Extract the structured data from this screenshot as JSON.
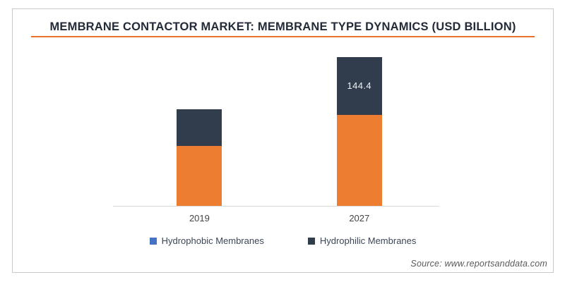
{
  "frame": {
    "border_color": "#c9c9c9",
    "background": "#ffffff"
  },
  "header": {
    "title": "MEMBRANE CONTACTOR MARKET: MEMBRANE TYPE DYNAMICS (USD BILLION)",
    "title_color": "#232a38",
    "underline_color": "#e8712c"
  },
  "chart_data": {
    "type": "bar",
    "stacked": true,
    "title": "MEMBRANE CONTACTOR MARKET: MEMBRANE TYPE DYNAMICS (USD BILLION)",
    "xlabel": "",
    "ylabel": "",
    "unit": "USD Billion",
    "categories": [
      "2019",
      "2027"
    ],
    "series": [
      {
        "name": "Hydrophobic Membranes",
        "legend_color": "#4472c4",
        "bar_color": "#ed7d31",
        "values": [
          150,
          227
        ]
      },
      {
        "name": "Hydrophilic Membranes",
        "legend_color": "#313d4d",
        "bar_color": "#313d4d",
        "values": [
          92,
          144.4
        ]
      }
    ],
    "data_labels": [
      {
        "category": "2027",
        "series": "Hydrophilic Membranes",
        "text": "144.4"
      }
    ],
    "values_estimated_from_pixels": true,
    "value_axis_visible": false,
    "grid": false,
    "legend_position": "bottom",
    "axis": {
      "baseline_color": "#d9d9d9",
      "tick_label_color": "#444444"
    }
  },
  "footer": {
    "source": "Source: www.reportsanddata.com",
    "source_color": "#5a5a5a"
  }
}
